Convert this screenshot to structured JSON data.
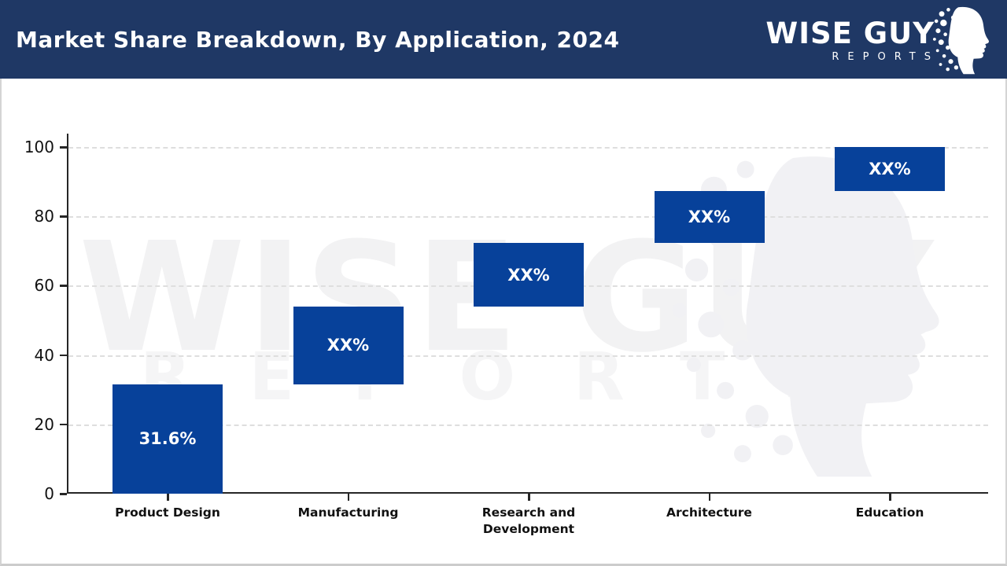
{
  "header": {
    "title": "Market Share Breakdown, By Application, 2024",
    "logo": {
      "line1": "WISE GUY",
      "line2": "REPORTS"
    }
  },
  "watermark": {
    "line1": "WISE GUY",
    "line2": "REPORTS"
  },
  "chart_data": {
    "type": "bar",
    "subtype": "stacked-waterfall",
    "title": "Market Share Breakdown, By Application, 2024",
    "categories": [
      "Product Design",
      "Manufacturing",
      "Research and\nDevelopment",
      "Architecture",
      "Education"
    ],
    "segments": [
      {
        "category": "Product Design",
        "start": 0,
        "end": 31.6,
        "label": "31.6%"
      },
      {
        "category": "Manufacturing",
        "start": 31.6,
        "end": 53.9,
        "label": "XX%"
      },
      {
        "category": "Research and Development",
        "start": 53.9,
        "end": 72.3,
        "label": "XX%"
      },
      {
        "category": "Architecture",
        "start": 72.3,
        "end": 87.3,
        "label": "XX%"
      },
      {
        "category": "Education",
        "start": 87.3,
        "end": 100,
        "label": "XX%"
      }
    ],
    "yticks": [
      0,
      20,
      40,
      60,
      80,
      100
    ],
    "ylim": [
      0,
      104
    ],
    "xlabel": "",
    "ylabel": "",
    "grid": "horizontal-dashed",
    "legend": "none",
    "colors": {
      "bar": "#07419a",
      "bar_label": "#ffffff",
      "header_bg": "#1f3865",
      "axis": "#262626",
      "gridline": "#dedede",
      "watermark": "#f2f2f3"
    }
  }
}
